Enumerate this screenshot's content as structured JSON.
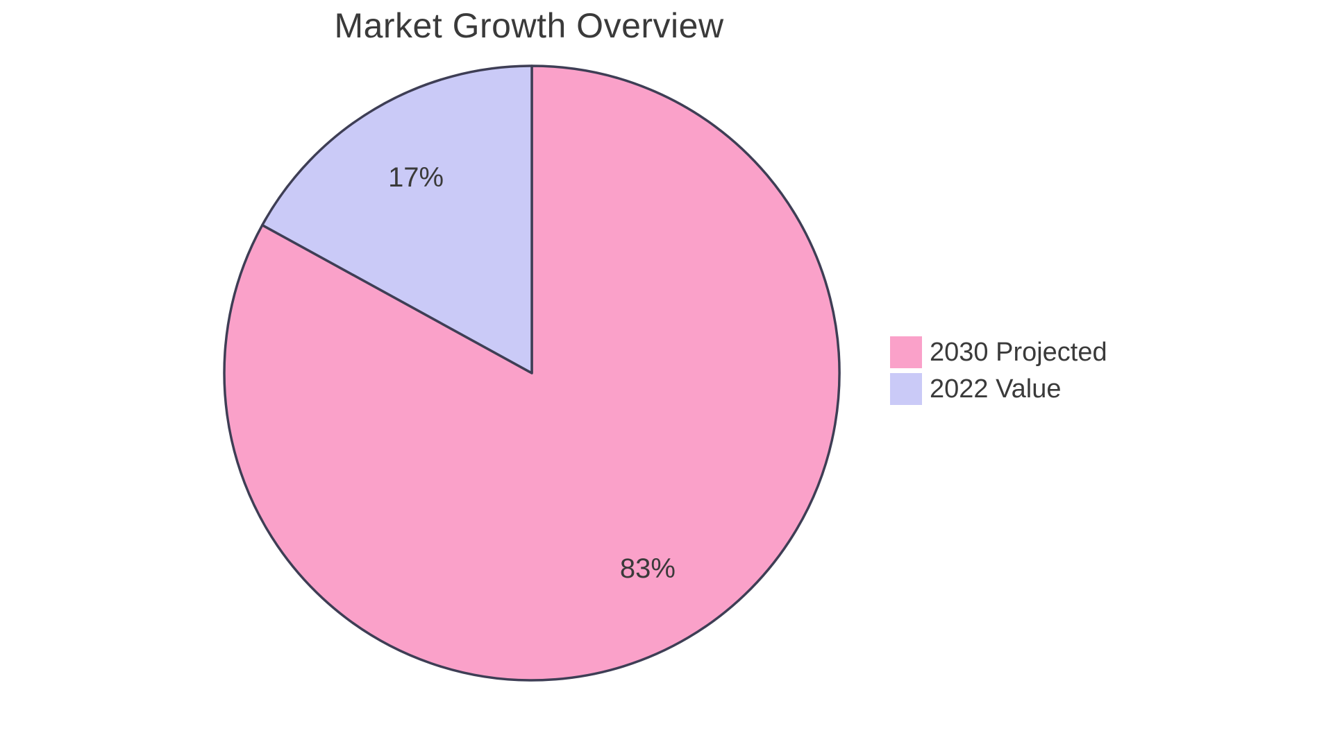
{
  "chart_data": {
    "type": "pie",
    "title": "Market Growth Overview",
    "series": [
      {
        "name": "2030 Projected",
        "value": 83,
        "label": "83%",
        "color": "#FAA1C9"
      },
      {
        "name": "2022 Value",
        "value": 17,
        "label": "17%",
        "color": "#CACAF7"
      }
    ],
    "legend": {
      "position": "right"
    },
    "layout_hints": {
      "start_angle_deg": 0,
      "direction": "clockwise",
      "labels_inside": true
    },
    "style": {
      "slice_border_color": "#3E3E55",
      "label_color": "#3A3A3A",
      "title_color": "#3A3A3A",
      "background": "#FFFFFF"
    }
  }
}
